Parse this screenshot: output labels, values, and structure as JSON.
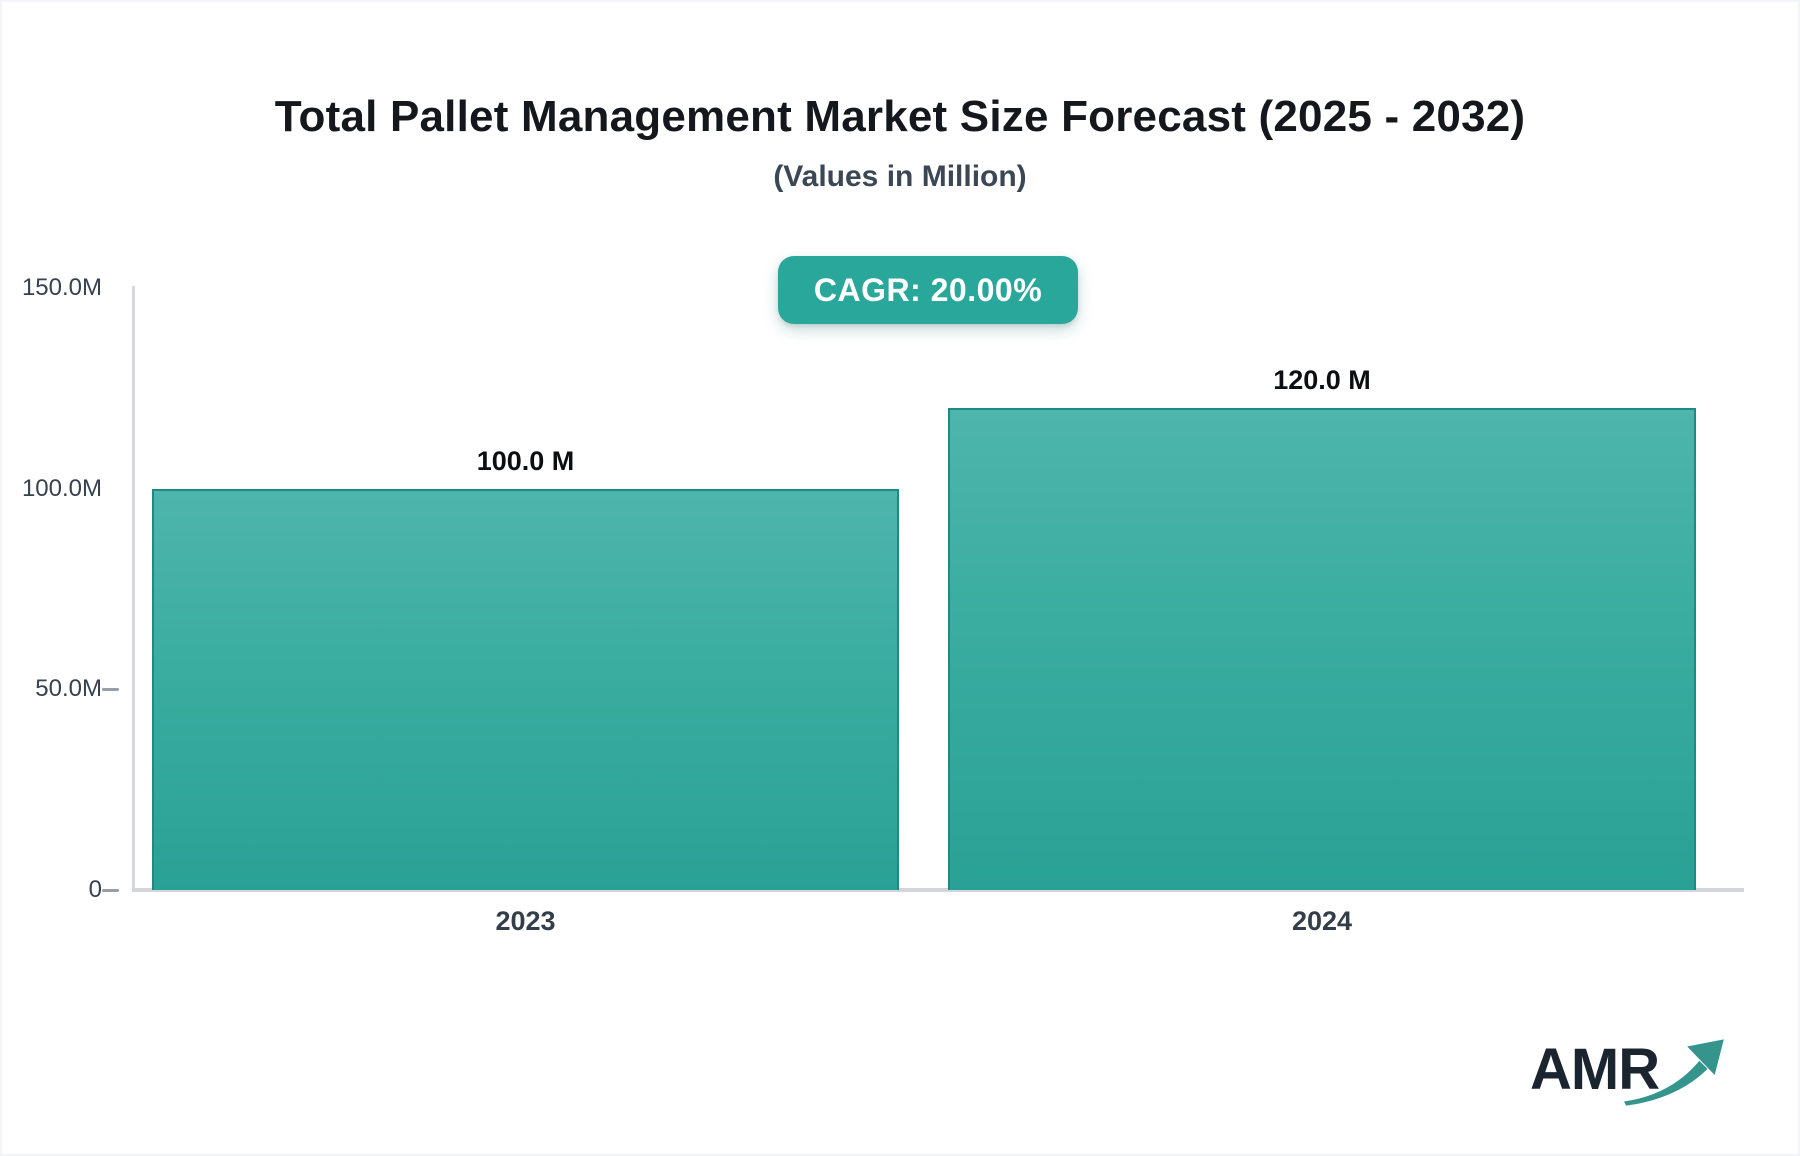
{
  "page": {
    "title": "Total Pallet Management Market Size Forecast (2025 - 2032)",
    "subtitle": "(Values in Million)",
    "cagr_label": "CAGR: 20.00%",
    "logo_text": "AMR"
  },
  "colors": {
    "bar_gradient_top": "#4eb5ac",
    "bar_gradient_bottom": "#2aa196",
    "bar_border": "#1d8b83",
    "badge_background": "#2aa79b",
    "badge_text": "#ffffff",
    "axis_line": "#d4d8dd",
    "axis_label": "#36424e",
    "title_text": "#14181c",
    "logo_text": "#1b2530",
    "logo_arrow": "#35958d"
  },
  "chart_data": {
    "type": "bar",
    "title": "Total Pallet Management Market Size Forecast (2025 - 2032)",
    "subtitle": "(Values in Million)",
    "annotation": "CAGR: 20.00%",
    "categories": [
      "2023",
      "2024"
    ],
    "values": [
      100.0,
      120.0
    ],
    "value_labels": [
      "100.0 M",
      "120.0 M"
    ],
    "unit": "Million",
    "xlabel": "",
    "ylabel": "",
    "ylim": [
      0,
      150
    ],
    "grid": false,
    "legend_position": "none",
    "yticks": [
      {
        "value": 0,
        "label": "0",
        "tick_mark": true
      },
      {
        "value": 50,
        "label": "50.0M",
        "tick_mark": true
      },
      {
        "value": 100,
        "label": "100.0M",
        "tick_mark": false
      },
      {
        "value": 150,
        "label": "150.0M",
        "tick_mark": false
      }
    ]
  }
}
